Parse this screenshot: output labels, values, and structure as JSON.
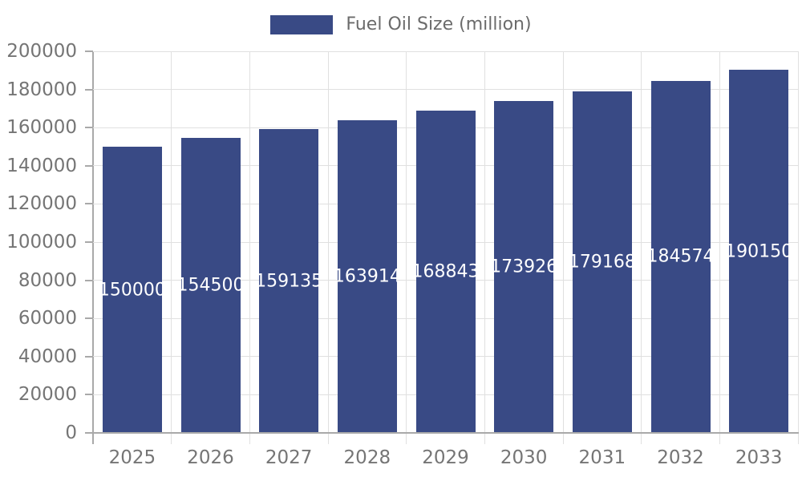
{
  "legend": {
    "label": "Fuel Oil Size (million)"
  },
  "chart_data": {
    "type": "bar",
    "title": "",
    "series_name": "Fuel Oil Size (million)",
    "categories": [
      "2025",
      "2026",
      "2027",
      "2028",
      "2029",
      "2030",
      "2031",
      "2032",
      "2033"
    ],
    "values": [
      150000,
      154500,
      159135,
      163914,
      168843,
      173926,
      179168,
      184574,
      190150
    ],
    "value_labels_visible": true,
    "xlabel": "",
    "ylabel": "",
    "ylim": [
      0,
      200000
    ],
    "yticks": [
      0,
      20000,
      40000,
      60000,
      80000,
      100000,
      120000,
      140000,
      160000,
      180000,
      200000
    ],
    "grid": true,
    "legend_position": "top-center",
    "bar_color": "#394a85",
    "value_label_color": "#ffffff",
    "grid_color": "#e0e0e0",
    "axis_color": "#a9a9a9",
    "tick_label_color": "#757575"
  }
}
